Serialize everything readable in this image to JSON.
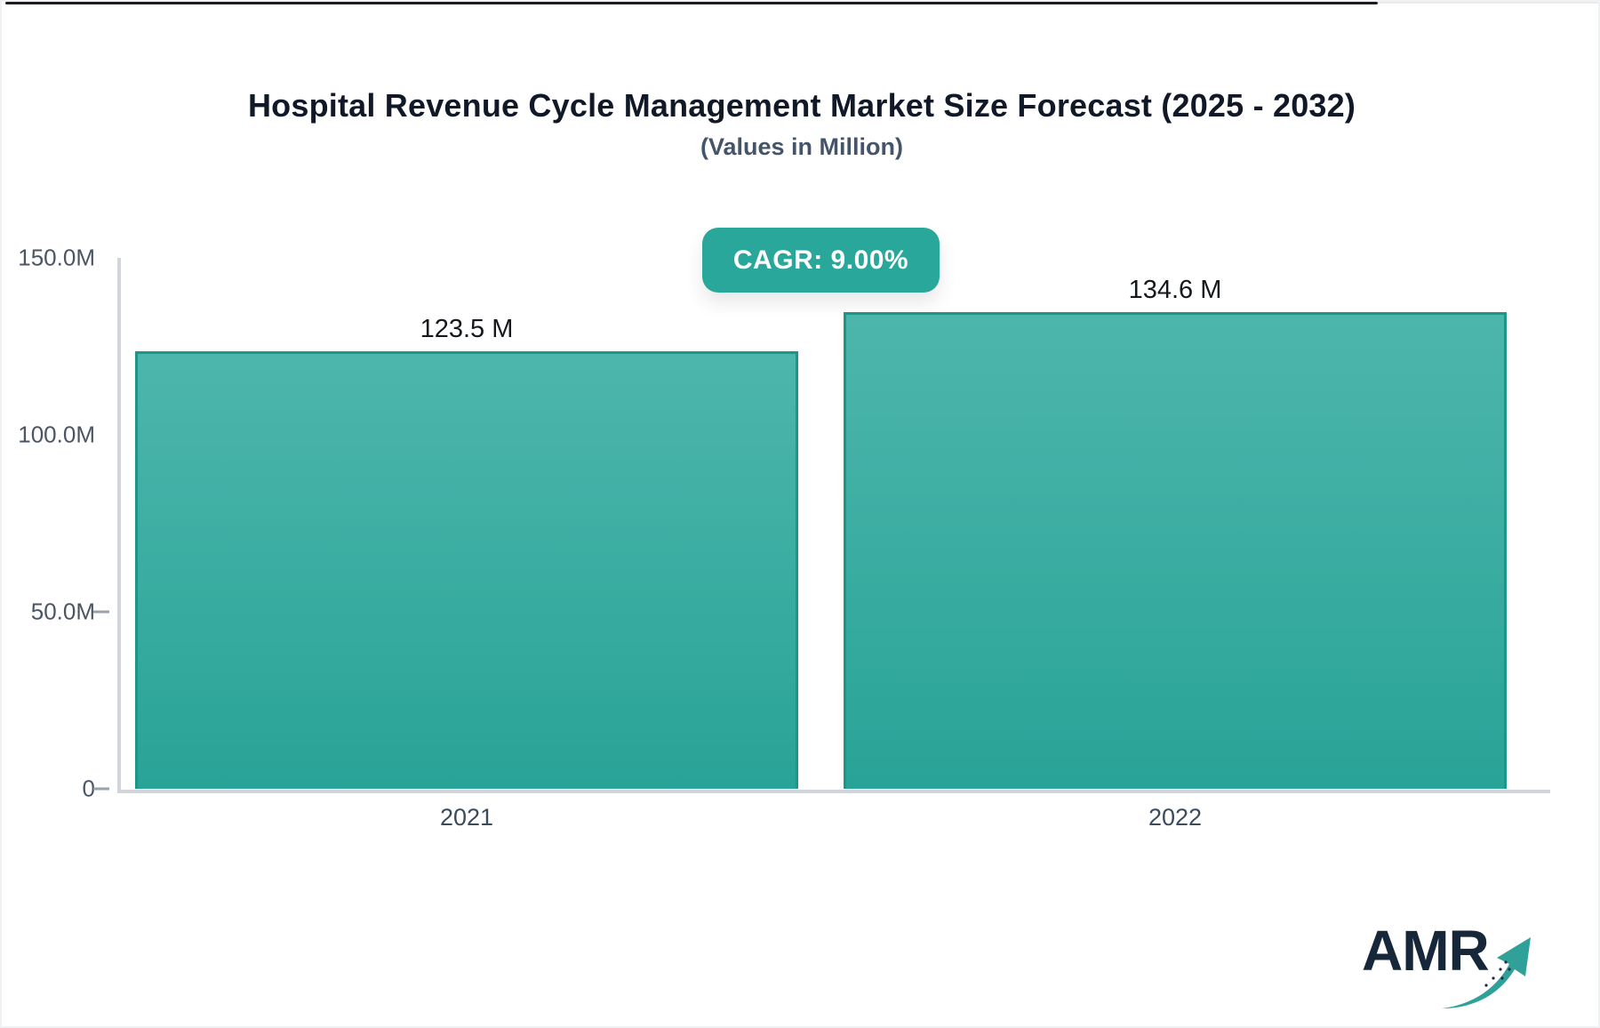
{
  "header": {
    "title": "Hospital Revenue Cycle Management Market Size Forecast (2025 - 2032)",
    "subtitle": "(Values in Million)"
  },
  "badge": {
    "label": "CAGR: 9.00%"
  },
  "chart_data": {
    "type": "bar",
    "title": "Hospital Revenue Cycle Management Market Size Forecast (2025 - 2032)",
    "subtitle": "(Values in Million)",
    "unit": "Million",
    "cagr_percent": "9.00%",
    "categories": [
      "2021",
      "2022"
    ],
    "values": [
      123.5,
      134.6
    ],
    "value_labels": [
      "123.5 M",
      "134.6 M"
    ],
    "ylim": [
      0,
      150
    ],
    "yticks": [
      {
        "value": 0,
        "label": "0",
        "dash": true
      },
      {
        "value": 50,
        "label": "50.0M",
        "dash": true
      },
      {
        "value": 100,
        "label": "100.0M",
        "dash": false
      },
      {
        "value": 150,
        "label": "150.0M",
        "dash": false
      }
    ],
    "grid": false,
    "legend": false,
    "colors": {
      "bar_top": "#4db6ac",
      "bar_bottom": "#29a397",
      "bar_border": "#1d968a",
      "badge_background": "#2aa79b",
      "badge_text": "#ffffff",
      "axis_line": "#d1d5db",
      "title_text": "#111827",
      "subtitle_text": "#44546a"
    }
  },
  "logo": {
    "text": "AMR"
  }
}
